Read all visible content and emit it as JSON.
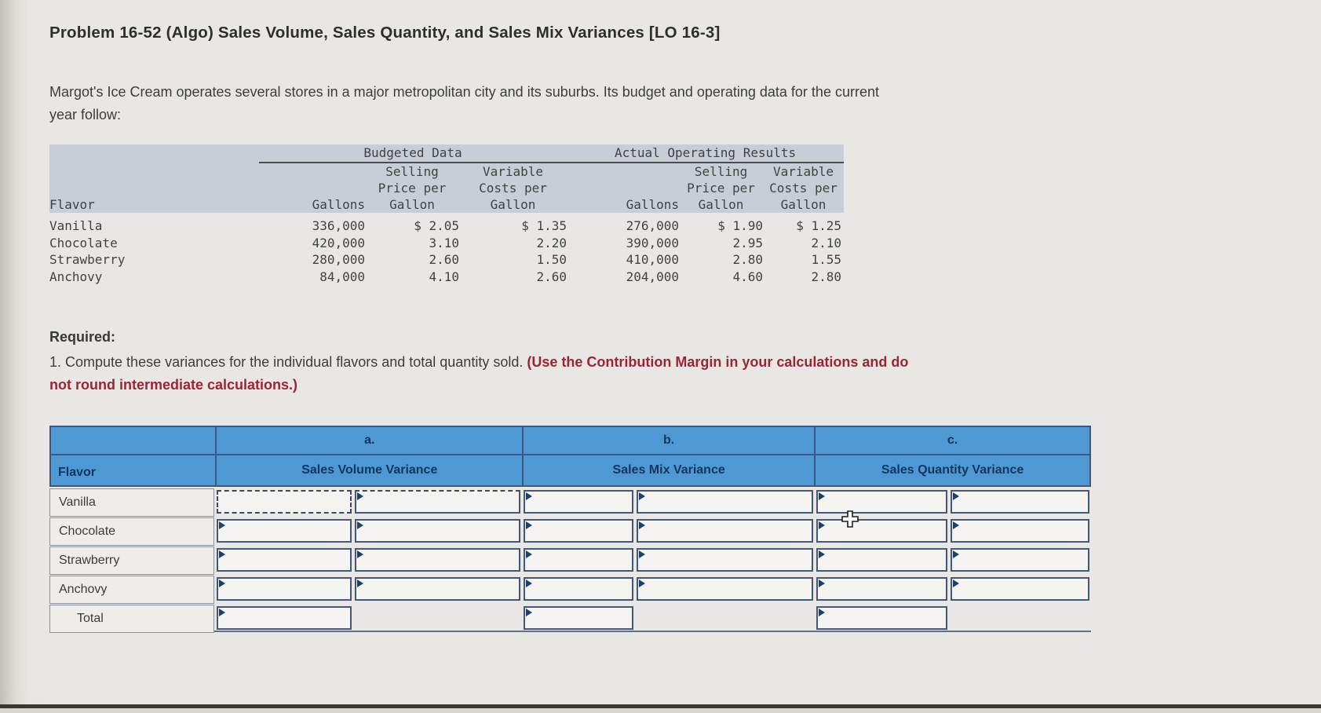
{
  "page": {
    "title": "Problem 16-52 (Algo) Sales Volume, Sales Quantity, and Sales Mix Variances [LO 16-3]",
    "intro_line1": "Margot's Ice Cream operates several stores in a major metropolitan city and its suburbs. Its budget and operating data for the current",
    "intro_line2": "year follow:",
    "required_label": "Required:",
    "req_line1_plain": "1. Compute these variances for the individual flavors and total quantity sold.",
    "req_line1_red": "(Use the Contribution Margin in your calculations and do",
    "req_line2_red": "not round intermediate calculations.)"
  },
  "budget_table": {
    "group_headers": [
      "Budgeted Data",
      "Actual Operating Results"
    ],
    "col_headers": [
      "Flavor",
      "Gallons",
      "Selling Price per Gallon",
      "Variable Costs per Gallon",
      "Gallons",
      "Selling Price per Gallon",
      "Variable Costs per Gallon"
    ],
    "rows": [
      {
        "flavor": "Vanilla",
        "b_gallons": "336,000",
        "b_price": "$ 2.05",
        "b_cost": "$ 1.35",
        "a_gallons": "276,000",
        "a_price": "$ 1.90",
        "a_cost": "$ 1.25"
      },
      {
        "flavor": "Chocolate",
        "b_gallons": "420,000",
        "b_price": "3.10",
        "b_cost": "2.20",
        "a_gallons": "390,000",
        "a_price": "2.95",
        "a_cost": "2.10"
      },
      {
        "flavor": "Strawberry",
        "b_gallons": "280,000",
        "b_price": "2.60",
        "b_cost": "1.50",
        "a_gallons": "410,000",
        "a_price": "2.80",
        "a_cost": "1.55"
      },
      {
        "flavor": "Anchovy",
        "b_gallons": "84,000",
        "b_price": "4.10",
        "b_cost": "2.60",
        "a_gallons": "204,000",
        "a_price": "4.60",
        "a_cost": "2.80"
      }
    ]
  },
  "answer_table": {
    "col_letters": [
      "a.",
      "b.",
      "c."
    ],
    "headers": [
      "Flavor",
      "Sales Volume Variance",
      "Sales Mix Variance",
      "Sales Quantity Variance"
    ],
    "row_labels": [
      "Vanilla",
      "Chocolate",
      "Strawberry",
      "Anchovy",
      "Total"
    ],
    "input_values": {
      "vanilla": {
        "sales_volume": "",
        "sales_volume_fu": "",
        "sales_mix": "",
        "sales_mix_fu": "",
        "sales_quantity": "",
        "sales_quantity_fu": ""
      },
      "chocolate": {
        "sales_volume": "",
        "sales_volume_fu": "",
        "sales_mix": "",
        "sales_mix_fu": "",
        "sales_quantity": "",
        "sales_quantity_fu": ""
      },
      "strawberry": {
        "sales_volume": "",
        "sales_volume_fu": "",
        "sales_mix": "",
        "sales_mix_fu": "",
        "sales_quantity": "",
        "sales_quantity_fu": ""
      },
      "anchovy": {
        "sales_volume": "",
        "sales_volume_fu": "",
        "sales_mix": "",
        "sales_mix_fu": "",
        "sales_quantity": "",
        "sales_quantity_fu": ""
      },
      "total": {
        "sales_volume": "",
        "sales_mix": "",
        "sales_quantity": ""
      }
    }
  },
  "colors": {
    "header_blue": "#4e99d3",
    "header_text_navy": "#12365f",
    "grid_border": "#44597a",
    "budget_header_band": "#c8cdd8",
    "note_red": "#9c2437",
    "page_background": "#e9e7e3"
  }
}
